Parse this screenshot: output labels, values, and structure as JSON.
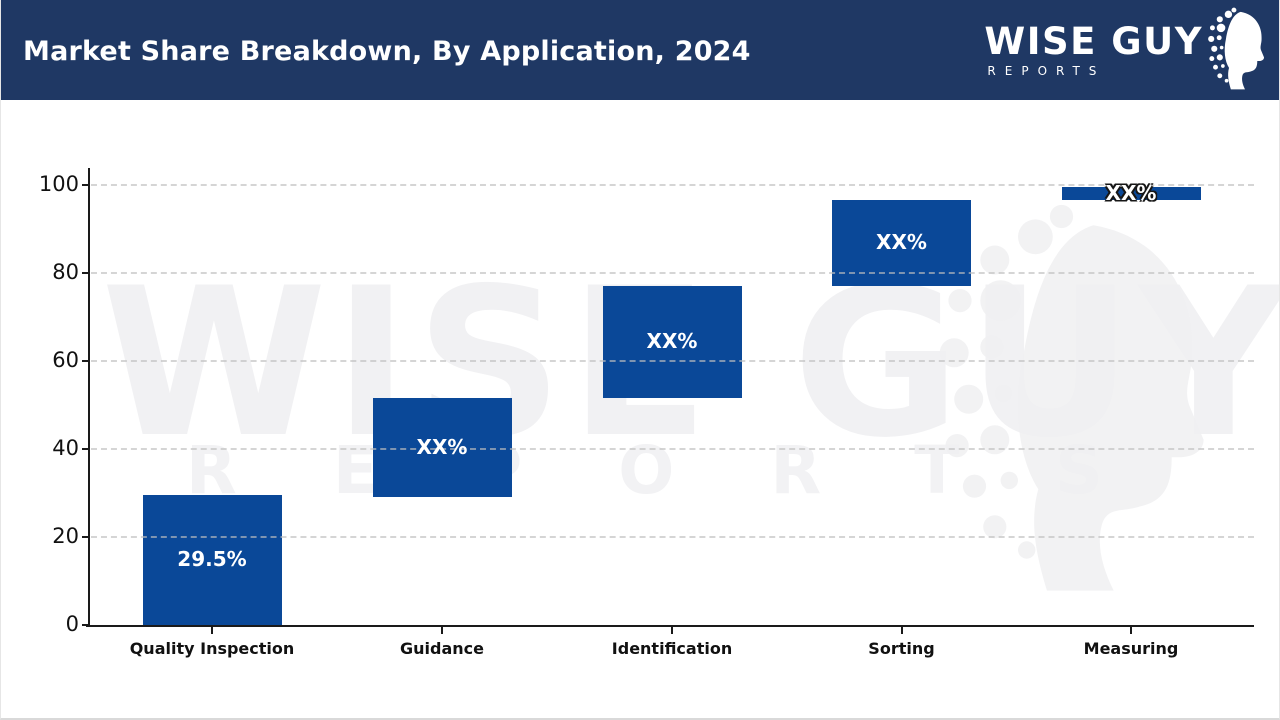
{
  "header": {
    "title": "Market Share Breakdown, By Application, 2024",
    "bg_color": "#1f3864",
    "logo": {
      "wordmark": "WISE GUY",
      "subtext": "REPORTS"
    }
  },
  "watermark": {
    "line1": "WISE GUY",
    "line2": "REPORTS"
  },
  "chart_data": {
    "type": "bar",
    "subtype": "waterfall",
    "title": "Market Share Breakdown, By Application, 2024",
    "categories": [
      "Quality Inspection",
      "Guidance",
      "Identification",
      "Sorting",
      "Measuring"
    ],
    "segments": [
      {
        "category": "Quality Inspection",
        "start": 0,
        "end": 29.5,
        "label": "29.5%"
      },
      {
        "category": "Guidance",
        "start": 29,
        "end": 51.5,
        "label": "XX%"
      },
      {
        "category": "Identification",
        "start": 51.5,
        "end": 77,
        "label": "XX%"
      },
      {
        "category": "Sorting",
        "start": 77,
        "end": 96.5,
        "label": "XX%"
      },
      {
        "category": "Measuring",
        "start": 96.5,
        "end": 99.5,
        "label": "XX%"
      }
    ],
    "yticks": [
      0,
      20,
      40,
      60,
      80,
      100
    ],
    "ylim": [
      0,
      104
    ],
    "xlabel": "",
    "ylabel": "",
    "bar_color": "#0a4898",
    "grid": "horizontal-dashed-above-bars",
    "legend": "none"
  }
}
